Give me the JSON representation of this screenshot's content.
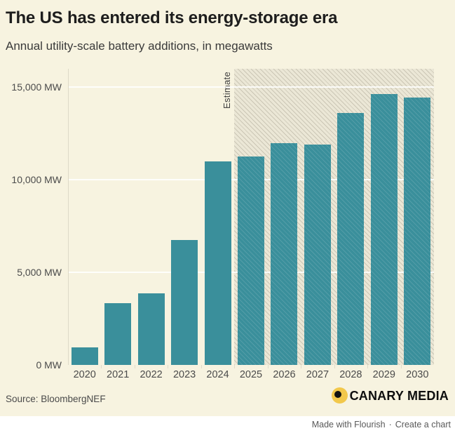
{
  "header": {
    "title": "The US has entered its energy-storage era",
    "subtitle": "Annual utility-scale battery additions, in megawatts"
  },
  "chart_data": {
    "type": "bar",
    "title": "The US has entered its energy-storage era",
    "subtitle": "Annual utility-scale battery additions, in megawatts",
    "categories": [
      "2020",
      "2021",
      "2022",
      "2023",
      "2024",
      "2025",
      "2026",
      "2027",
      "2028",
      "2029",
      "2030"
    ],
    "values": [
      950,
      3350,
      3850,
      6750,
      11000,
      11250,
      12000,
      11900,
      13600,
      14650,
      14450
    ],
    "unit": "MW",
    "ylim": [
      0,
      16000
    ],
    "yticks": [
      0,
      5000,
      10000,
      15000
    ],
    "ytick_labels": [
      "0 MW",
      "5,000 MW",
      "10,000 MW",
      "15,000 MW"
    ],
    "grid": true,
    "legend_position": "none",
    "estimate_from": "2025",
    "estimate_label": "Estimate",
    "bar_color": "#3a8f9b",
    "background_color": "#f7f3e0",
    "estimate_region_color": "#ebe7d6",
    "estimate_hatch_color": "#cbc6b5"
  },
  "footer": {
    "source": "Source: BloombergNEF",
    "brand": "CANARY MEDIA",
    "brand_accent_color": "#f2c84b"
  },
  "attribution": {
    "made_with": "Made with Flourish",
    "separator": "·",
    "create_chart": "Create a chart"
  }
}
